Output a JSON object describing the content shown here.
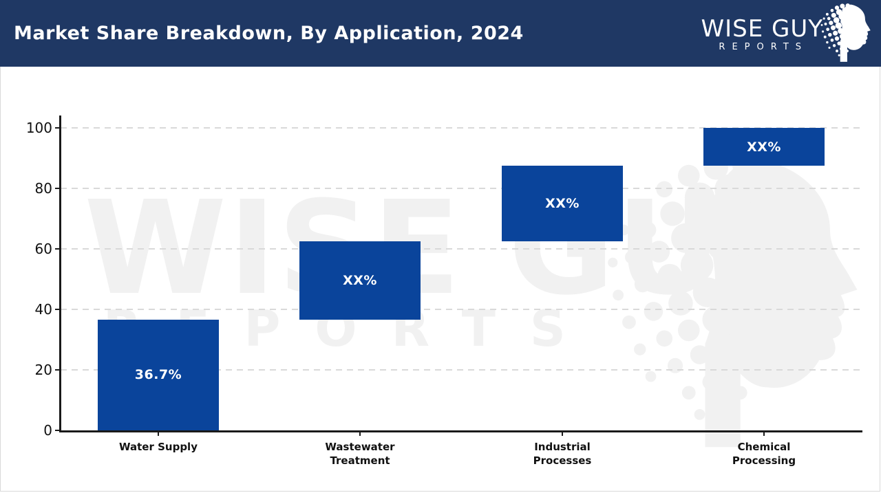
{
  "header": {
    "title": "Market Share Breakdown, By Application, 2024",
    "logo": {
      "name": "WISE GUY",
      "subtitle": "REPORTS"
    }
  },
  "watermark": {
    "line1": "WISE GUY",
    "line2": "REPORTS"
  },
  "chart_data": {
    "type": "bar",
    "subtype": "floating-waterfall",
    "title": "Market Share Breakdown, By Application, 2024",
    "categories": [
      "Water Supply",
      "Wastewater Treatment",
      "Industrial Processes",
      "Chemical Processing"
    ],
    "segments": [
      {
        "category": "Water Supply",
        "label_lines": [
          "Water Supply"
        ],
        "start": 0,
        "end": 36.7,
        "value_label": "36.7%"
      },
      {
        "category": "Wastewater Treatment",
        "label_lines": [
          "Wastewater",
          "Treatment"
        ],
        "start": 36.7,
        "end": 62.6,
        "value_label": "XX%"
      },
      {
        "category": "Industrial Processes",
        "label_lines": [
          "Industrial",
          "Processes"
        ],
        "start": 62.6,
        "end": 87.5,
        "value_label": "XX%"
      },
      {
        "category": "Chemical Processing",
        "label_lines": [
          "Chemical",
          "Processing"
        ],
        "start": 87.5,
        "end": 100,
        "value_label": "XX%"
      }
    ],
    "yticks": [
      0,
      20,
      40,
      60,
      80,
      100
    ],
    "ylim": [
      0,
      100
    ],
    "xlabel": "",
    "ylabel": "",
    "grid": "horizontal-dashed",
    "legend": "none",
    "colors": {
      "bar": "#0a449b",
      "header_bg": "#1f3864",
      "axis": "#1a1a1a",
      "grid": "#d9d9d9",
      "value_label": "#ffffff",
      "watermark": "#f1f1f1"
    }
  }
}
